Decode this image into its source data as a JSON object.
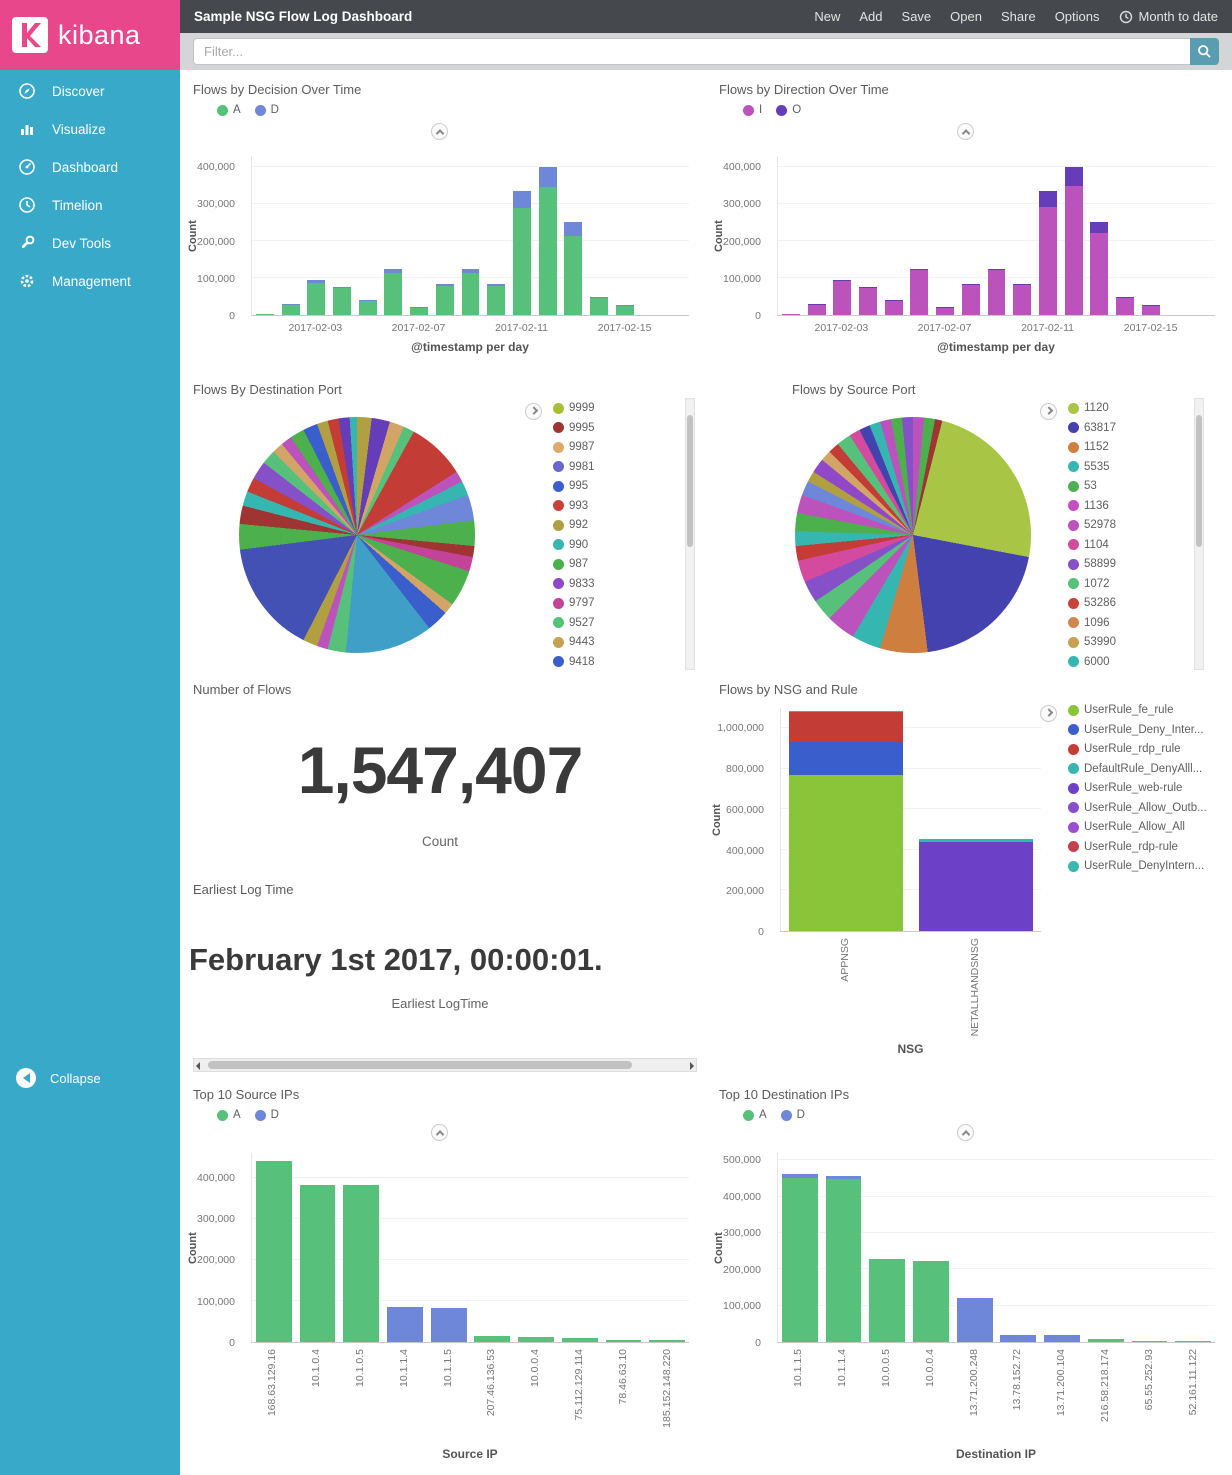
{
  "sidebar": {
    "logo_text": "kibana",
    "items": [
      {
        "label": "Discover"
      },
      {
        "label": "Visualize"
      },
      {
        "label": "Dashboard"
      },
      {
        "label": "Timelion"
      },
      {
        "label": "Dev Tools"
      },
      {
        "label": "Management"
      }
    ],
    "collapse_label": "Collapse"
  },
  "topbar": {
    "title": "Sample NSG Flow Log Dashboard",
    "menu": [
      "New",
      "Add",
      "Save",
      "Open",
      "Share",
      "Options"
    ],
    "time_picker": "Month to date"
  },
  "filter": {
    "placeholder": "Filter..."
  },
  "panels": {
    "decision": "Flows by Decision Over Time",
    "direction": "Flows by Direction Over Time",
    "dest_port": "Flows By Destination Port",
    "src_port": "Flows by Source Port",
    "num_flows": "Number of Flows",
    "nsg_rule": "Flows by NSG and Rule",
    "earliest": "Earliest Log Time",
    "top_src": "Top 10 Source IPs",
    "top_dst": "Top 10 Destination IPs"
  },
  "metrics": {
    "flows_value": "1,547,407",
    "flows_label": "Count",
    "earliest_value": "February 1st 2017, 00:00:01.",
    "earliest_label": "Earliest LogTime"
  },
  "charts": {
    "decision": {
      "type": "stacked-bar",
      "ylabel": "Count",
      "xlabel": "@timestamp per day",
      "ymax": 430000,
      "yticks": [
        0,
        100000,
        200000,
        300000,
        400000
      ],
      "barw": 0.7,
      "rotate": false,
      "x": [
        "",
        "",
        "2017-02-03",
        "",
        "",
        "",
        "2017-02-07",
        "",
        "",
        "",
        "2017-02-11",
        "",
        "",
        "",
        "2017-02-15",
        "",
        ""
      ],
      "legend": [
        {
          "label": "A",
          "color": "#57c17b"
        },
        {
          "label": "D",
          "color": "#6f87d8"
        }
      ],
      "series": [
        {
          "name": "A",
          "color": "#57c17b",
          "values": [
            3000,
            28000,
            86000,
            73000,
            38000,
            114000,
            20000,
            79000,
            114000,
            79000,
            290000,
            345000,
            215000,
            48000,
            25000,
            0,
            0
          ]
        },
        {
          "name": "D",
          "color": "#6f87d8",
          "values": [
            0,
            2000,
            9000,
            4000,
            2000,
            11000,
            1000,
            6000,
            11000,
            6000,
            45000,
            55000,
            37000,
            2000,
            1000,
            0,
            0
          ]
        }
      ]
    },
    "direction": {
      "type": "stacked-bar",
      "ylabel": "Count",
      "xlabel": "@timestamp per day",
      "ymax": 430000,
      "yticks": [
        0,
        100000,
        200000,
        300000,
        400000
      ],
      "barw": 0.7,
      "rotate": false,
      "x": [
        "",
        "",
        "2017-02-03",
        "",
        "",
        "",
        "2017-02-07",
        "",
        "",
        "",
        "2017-02-11",
        "",
        "",
        "",
        "2017-02-15",
        "",
        ""
      ],
      "legend": [
        {
          "label": "I",
          "color": "#bc52bc"
        },
        {
          "label": "O",
          "color": "#663db8"
        }
      ],
      "series": [
        {
          "name": "I",
          "color": "#bc52bc",
          "values": [
            3000,
            29000,
            92000,
            75000,
            39000,
            121000,
            20000,
            82000,
            121000,
            82000,
            293000,
            348000,
            222000,
            49000,
            25000,
            0,
            0
          ]
        },
        {
          "name": "O",
          "color": "#663db8",
          "values": [
            0,
            1000,
            3000,
            2000,
            1000,
            4000,
            1000,
            3000,
            4000,
            3000,
            42000,
            52000,
            30000,
            1000,
            1000,
            0,
            0
          ]
        }
      ]
    },
    "dest_port_pie": {
      "type": "pie",
      "legend": [
        {
          "label": "9999",
          "color": "#a8bf34"
        },
        {
          "label": "9995",
          "color": "#9e3533"
        },
        {
          "label": "9987",
          "color": "#e0a96a"
        },
        {
          "label": "9981",
          "color": "#6a67cf"
        },
        {
          "label": "995",
          "color": "#3a5ecc"
        },
        {
          "label": "993",
          "color": "#c8413b"
        },
        {
          "label": "992",
          "color": "#b1a041"
        },
        {
          "label": "990",
          "color": "#35b6b0"
        },
        {
          "label": "987",
          "color": "#4cb04c"
        },
        {
          "label": "9833",
          "color": "#9048c8"
        },
        {
          "label": "9797",
          "color": "#c24398"
        },
        {
          "label": "9527",
          "color": "#57c17b"
        },
        {
          "label": "9443",
          "color": "#c8a253"
        },
        {
          "label": "9418",
          "color": "#3a5ecc"
        }
      ],
      "slices": [
        {
          "color": "#b1a041",
          "pct": 2
        },
        {
          "color": "#663db8",
          "pct": 2.5
        },
        {
          "color": "#d2a567",
          "pct": 2
        },
        {
          "color": "#57c17b",
          "pct": 1.5
        },
        {
          "color": "#c33c36",
          "pct": 8
        },
        {
          "color": "#bc52bc",
          "pct": 1.5
        },
        {
          "color": "#35b6b0",
          "pct": 2
        },
        {
          "color": "#6f87d8",
          "pct": 3.5
        },
        {
          "color": "#4cb04c",
          "pct": 3.5
        },
        {
          "color": "#9e3533",
          "pct": 1.5
        },
        {
          "color": "#c24398",
          "pct": 2
        },
        {
          "color": "#4cb04c",
          "pct": 5
        },
        {
          "color": "#d2a567",
          "pct": 1.5
        },
        {
          "color": "#3a5ecc",
          "pct": 3
        },
        {
          "color": "#3f9fc6",
          "pct": 12
        },
        {
          "color": "#57c17b",
          "pct": 2.5
        },
        {
          "color": "#bc52bc",
          "pct": 1.5
        },
        {
          "color": "#b1a041",
          "pct": 2
        },
        {
          "color": "#4350b4",
          "pct": 15.5
        },
        {
          "color": "#4cb04c",
          "pct": 3.5
        },
        {
          "color": "#9e3533",
          "pct": 2.5
        },
        {
          "color": "#35b6b0",
          "pct": 2
        },
        {
          "color": "#c33c36",
          "pct": 2
        },
        {
          "color": "#8650c8",
          "pct": 2.5
        },
        {
          "color": "#57c17b",
          "pct": 2
        },
        {
          "color": "#d2a567",
          "pct": 1.5
        },
        {
          "color": "#bc52bc",
          "pct": 1.5
        },
        {
          "color": "#4cb04c",
          "pct": 2
        },
        {
          "color": "#3a5ecc",
          "pct": 2
        },
        {
          "color": "#b1a041",
          "pct": 1.5
        },
        {
          "color": "#c33c36",
          "pct": 1.5
        },
        {
          "color": "#663db8",
          "pct": 1.5
        },
        {
          "color": "#35b6b0",
          "pct": 1
        }
      ]
    },
    "src_port_pie": {
      "type": "pie",
      "legend": [
        {
          "label": "1120",
          "color": "#a8c545"
        },
        {
          "label": "63817",
          "color": "#4342ae"
        },
        {
          "label": "1152",
          "color": "#ce7e3f"
        },
        {
          "label": "5535",
          "color": "#35b6b0"
        },
        {
          "label": "53",
          "color": "#4cb052"
        },
        {
          "label": "1136",
          "color": "#c44fc4"
        },
        {
          "label": "52978",
          "color": "#bc52bc"
        },
        {
          "label": "1104",
          "color": "#d44a9e"
        },
        {
          "label": "58899",
          "color": "#8650c8"
        },
        {
          "label": "1072",
          "color": "#57c17b"
        },
        {
          "label": "53286",
          "color": "#c8413b"
        },
        {
          "label": "1096",
          "color": "#d2854e"
        },
        {
          "label": "53990",
          "color": "#c8a253"
        },
        {
          "label": "6000",
          "color": "#35b6b0"
        }
      ],
      "slices": [
        {
          "color": "#bc52bc",
          "pct": 1.5
        },
        {
          "color": "#4cb04c",
          "pct": 1.5
        },
        {
          "color": "#9e3533",
          "pct": 1
        },
        {
          "color": "#a8c545",
          "pct": 24
        },
        {
          "color": "#4342ae",
          "pct": 20
        },
        {
          "color": "#ce7e3f",
          "pct": 6.5
        },
        {
          "color": "#35b6b0",
          "pct": 4
        },
        {
          "color": "#bc52bc",
          "pct": 4
        },
        {
          "color": "#57c17b",
          "pct": 3
        },
        {
          "color": "#8650c8",
          "pct": 3
        },
        {
          "color": "#d44a9e",
          "pct": 3
        },
        {
          "color": "#c33c36",
          "pct": 2
        },
        {
          "color": "#35b6b0",
          "pct": 2
        },
        {
          "color": "#4cb04c",
          "pct": 2.5
        },
        {
          "color": "#bc52bc",
          "pct": 2.5
        },
        {
          "color": "#6f87d8",
          "pct": 2
        },
        {
          "color": "#b1a041",
          "pct": 1.5
        },
        {
          "color": "#9048c8",
          "pct": 2
        },
        {
          "color": "#d2a567",
          "pct": 1.5
        },
        {
          "color": "#c33c36",
          "pct": 1.5
        },
        {
          "color": "#57c17b",
          "pct": 2
        },
        {
          "color": "#d44a9e",
          "pct": 1.5
        },
        {
          "color": "#4342ae",
          "pct": 1.5
        },
        {
          "color": "#35b6b0",
          "pct": 1.5
        },
        {
          "color": "#bc52bc",
          "pct": 1.5
        },
        {
          "color": "#4cb04c",
          "pct": 1.5
        },
        {
          "color": "#8650c8",
          "pct": 1.5
        }
      ]
    },
    "nsg": {
      "type": "stacked-bar",
      "ylabel": "Count",
      "xlabel": "NSG",
      "ymax": 1100000,
      "yticks": [
        0,
        200000,
        400000,
        600000,
        800000,
        1000000
      ],
      "barw": 0.88,
      "rotate": true,
      "x": [
        "APPNSG",
        "NETALLHANDSNSG"
      ],
      "legend": [
        {
          "label": "UserRule_fe_rule",
          "color": "#8ac539"
        },
        {
          "label": "UserRule_Deny_Inter...",
          "color": "#3a5ecc"
        },
        {
          "label": "UserRule_rdp_rule",
          "color": "#c33c36"
        },
        {
          "label": "DefaultRule_DenyAlll...",
          "color": "#35b6b0"
        },
        {
          "label": "UserRule_web-rule",
          "color": "#6c41c8"
        },
        {
          "label": "UserRule_Allow_Outb...",
          "color": "#8650c8"
        },
        {
          "label": "UserRule_Allow_All",
          "color": "#9a4fd0"
        },
        {
          "label": "UserRule_rdp-rule",
          "color": "#c2404f"
        },
        {
          "label": "UserRule_DenyIntern...",
          "color": "#38b8ae"
        }
      ],
      "series": [
        {
          "name": "UserRule_fe_rule",
          "color": "#8ac539",
          "values": [
            770000,
            0
          ]
        },
        {
          "name": "UserRule_Deny_Inter...",
          "color": "#3a5ecc",
          "values": [
            160000,
            0
          ]
        },
        {
          "name": "UserRule_rdp_rule",
          "color": "#c33c36",
          "values": [
            148000,
            0
          ]
        },
        {
          "name": "UserRule_web-rule",
          "color": "#6c41c8",
          "values": [
            0,
            440000
          ]
        },
        {
          "name": "DefaultRule_DenyAlll...",
          "color": "#35b6b0",
          "values": [
            6000,
            15000
          ]
        }
      ]
    },
    "top_src": {
      "type": "stacked-bar",
      "ylabel": "Count",
      "xlabel": "Source IP",
      "ymax": 460000,
      "yticks": [
        0,
        100000,
        200000,
        300000,
        400000
      ],
      "barw": 0.82,
      "rotate": true,
      "x": [
        "168.63.129.16",
        "10.1.0.4",
        "10.1.0.5",
        "10.1.1.4",
        "10.1.1.5",
        "207.46.136.53",
        "10.0.0.4",
        "75.112.129.114",
        "78.46.63.10",
        "185.152.148.220"
      ],
      "legend": [
        {
          "label": "A",
          "color": "#57c17b"
        },
        {
          "label": "D",
          "color": "#6f87d8"
        }
      ],
      "series": [
        {
          "name": "A",
          "color": "#57c17b",
          "values": [
            440000,
            383000,
            383000,
            0,
            0,
            15000,
            12000,
            10000,
            6000,
            5000
          ]
        },
        {
          "name": "D",
          "color": "#6f87d8",
          "values": [
            0,
            0,
            0,
            85000,
            82000,
            0,
            0,
            0,
            0,
            0
          ]
        }
      ]
    },
    "top_dst": {
      "type": "stacked-bar",
      "ylabel": "Count",
      "xlabel": "Destination IP",
      "ymax": 520000,
      "yticks": [
        0,
        100000,
        200000,
        300000,
        400000,
        500000
      ],
      "barw": 0.82,
      "rotate": true,
      "x": [
        "10.1.1.5",
        "10.1.1.4",
        "10.0.0.5",
        "10.0.0.4",
        "13.71.200.248",
        "13.78.152.72",
        "13.71.200.104",
        "216.58.218.174",
        "65.55.252.93",
        "52.161.11.122"
      ],
      "legend": [
        {
          "label": "A",
          "color": "#57c17b"
        },
        {
          "label": "D",
          "color": "#6f87d8"
        }
      ],
      "series": [
        {
          "name": "A",
          "color": "#57c17b",
          "values": [
            450000,
            448000,
            228000,
            222000,
            0,
            0,
            0,
            8000,
            2000,
            1500
          ]
        },
        {
          "name": "D",
          "color": "#6f87d8",
          "values": [
            12000,
            10000,
            0,
            0,
            120000,
            20000,
            18000,
            0,
            0,
            0
          ]
        }
      ]
    }
  }
}
